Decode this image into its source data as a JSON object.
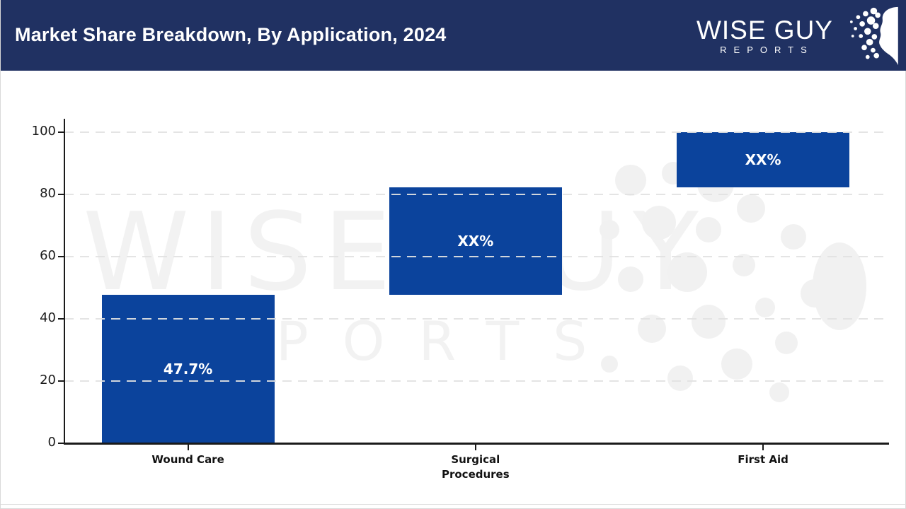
{
  "header": {
    "title": "Market Share Breakdown, By Application, 2024",
    "logo_line1": "WISE GUY",
    "logo_line2": "REPORTS"
  },
  "watermark": {
    "line1": "WISE GUY",
    "line2": "REPORTS"
  },
  "chart_data": {
    "type": "bar",
    "variant": "floating-segment-waterfall",
    "title": "Market Share Breakdown, By Application, 2024",
    "categories": [
      "Wound Care",
      "Surgical\nProcedures",
      "First Aid"
    ],
    "segments": [
      {
        "category": "Wound Care",
        "start": 0,
        "end": 47.7,
        "label": "47.7%"
      },
      {
        "category": "Surgical Procedures",
        "start": 47.7,
        "end": 82.3,
        "label": "XX%"
      },
      {
        "category": "First Aid",
        "start": 82.3,
        "end": 100,
        "label": "XX%"
      }
    ],
    "yticks": [
      0,
      20,
      40,
      60,
      80,
      100
    ],
    "ytick_labels": [
      "0",
      "20",
      "40",
      "60",
      "80",
      "100"
    ],
    "ylim": [
      0,
      103.9
    ],
    "xlabel": "",
    "ylabel": "",
    "grid": "horizontal-dashed",
    "legend": "none"
  },
  "colors": {
    "header_bg": "#203162",
    "bar": "#0b439c",
    "bar_label": "#ffffff",
    "axis": "#1a1a1a",
    "grid": "#e2e2e2",
    "watermark": "#f2f2f2",
    "panel_border": "#d9d9d9"
  }
}
